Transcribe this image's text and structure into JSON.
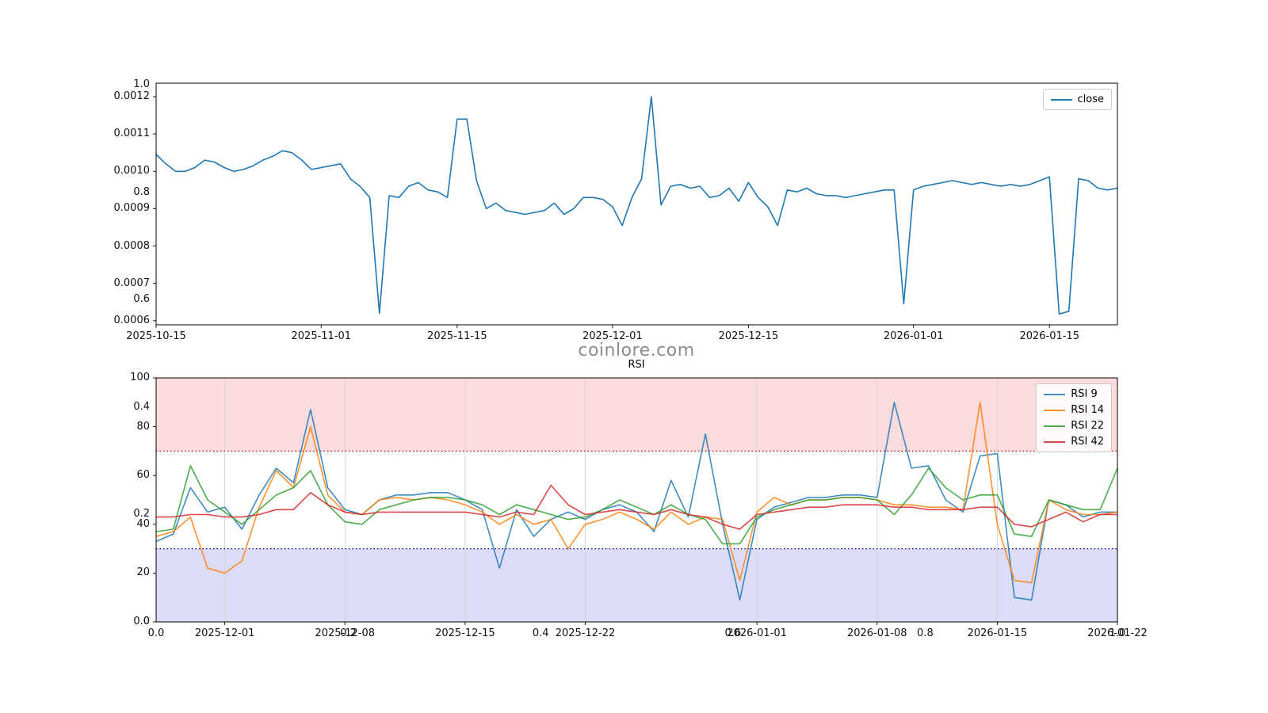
{
  "watermark": "coinlore.com",
  "overlay_axis": {
    "y_tick_labels": [
      "1.0",
      "0.8",
      "0.6",
      "0.4",
      "0.2",
      "0.0"
    ],
    "x_tick_labels": [
      "0.0",
      "0.2",
      "0.4",
      "0.6",
      "0.8",
      "1.0"
    ]
  },
  "chart_data": [
    {
      "type": "line",
      "title": "",
      "legend_position": "upper right",
      "grid": false,
      "xlim_points": 100,
      "ylim": [
        0.000589,
        0.001236
      ],
      "x_tick_indices": [
        0,
        17,
        31,
        47,
        61,
        78,
        92
      ],
      "x_tick_labels": [
        "2025-10-15",
        "2025-11-01",
        "2025-11-15",
        "2025-12-01",
        "2025-12-15",
        "2026-01-01",
        "2026-01-15"
      ],
      "y_tick_values": [
        0.0006,
        0.0007,
        0.0008,
        0.0009,
        0.001,
        0.0011,
        0.0012
      ],
      "y_tick_labels": [
        "0.0006",
        "0.0007",
        "0.0008",
        "0.0009",
        "0.0010",
        "0.0011",
        "0.0012"
      ],
      "series": [
        {
          "name": "close",
          "color": "#1f77b4",
          "values": [
            0.001045,
            0.00102,
            0.001,
            0.001,
            0.00101,
            0.00103,
            0.001025,
            0.00101,
            0.001,
            0.001005,
            0.001015,
            0.00103,
            0.00104,
            0.001055,
            0.00105,
            0.00103,
            0.001005,
            0.00101,
            0.001015,
            0.00102,
            0.00098,
            0.00096,
            0.00093,
            0.00062,
            0.000935,
            0.00093,
            0.00096,
            0.00097,
            0.00095,
            0.000945,
            0.00093,
            0.00114,
            0.00114,
            0.000975,
            0.0009,
            0.000915,
            0.000895,
            0.00089,
            0.000885,
            0.00089,
            0.000895,
            0.000915,
            0.000885,
            0.0009,
            0.00093,
            0.00093,
            0.000925,
            0.000905,
            0.000855,
            0.00093,
            0.00098,
            0.0012,
            0.00091,
            0.00096,
            0.000965,
            0.000955,
            0.00096,
            0.00093,
            0.000935,
            0.000955,
            0.00092,
            0.00097,
            0.00093,
            0.000905,
            0.000855,
            0.00095,
            0.000945,
            0.000955,
            0.00094,
            0.000935,
            0.000935,
            0.00093,
            0.000935,
            0.00094,
            0.000945,
            0.00095,
            0.00095,
            0.000645,
            0.00095,
            0.00096,
            0.000965,
            0.00097,
            0.000975,
            0.00097,
            0.000965,
            0.00097,
            0.000965,
            0.00096,
            0.000965,
            0.00096,
            0.000965,
            0.000975,
            0.000985,
            0.000618,
            0.000625,
            0.00098,
            0.000975,
            0.000955,
            0.00095,
            0.000955
          ]
        }
      ]
    },
    {
      "type": "line",
      "title": "RSI",
      "legend_position": "upper right",
      "grid": true,
      "xlim_points": 57,
      "ylim": [
        0,
        100
      ],
      "x_tick_indices": [
        4,
        11,
        18,
        25,
        35,
        42,
        49,
        56
      ],
      "x_tick_labels": [
        "2025-12-01",
        "2025-12-08",
        "2025-12-15",
        "2025-12-22",
        "2026-01-01",
        "2026-01-08",
        "2026-01-15",
        "2026-01-22"
      ],
      "y_tick_values": [
        0,
        20,
        40,
        60,
        80,
        100
      ],
      "y_tick_labels": [
        "0",
        "20",
        "40",
        "60",
        "80",
        "100"
      ],
      "overbought_line": {
        "value": 70,
        "color": "#cc0000",
        "style": "dotted"
      },
      "oversold_line": {
        "value": 30,
        "color": "#0000bb",
        "style": "dotted"
      },
      "overbought_band_color": "#fbdcdc",
      "oversold_band_color": "#dcdcf6",
      "series": [
        {
          "name": "RSI 9",
          "color": "#1f77b4",
          "values": [
            33,
            36,
            55,
            45,
            47,
            38,
            52,
            63,
            57,
            87,
            55,
            46,
            44,
            50,
            52,
            52,
            53,
            53,
            50,
            46,
            22,
            46,
            35,
            42,
            45,
            42,
            46,
            48,
            45,
            37,
            58,
            43,
            77,
            40,
            9,
            42,
            47,
            49,
            51,
            51,
            52,
            52,
            51,
            90,
            63,
            64,
            50,
            45,
            68,
            69,
            10,
            9,
            50,
            48,
            43,
            45,
            45
          ]
        },
        {
          "name": "RSI 14",
          "color": "#ff7f0e",
          "values": [
            35,
            37,
            43,
            22,
            20,
            25,
            47,
            62,
            55,
            80,
            52,
            45,
            44,
            50,
            51,
            50,
            51,
            50,
            48,
            45,
            40,
            44,
            40,
            42,
            30,
            40,
            42,
            45,
            42,
            38,
            45,
            40,
            43,
            42,
            17,
            45,
            51,
            48,
            50,
            50,
            51,
            51,
            50,
            48,
            48,
            47,
            47,
            46,
            90,
            40,
            17,
            16,
            50,
            46,
            44,
            44,
            45
          ]
        },
        {
          "name": "RSI 22",
          "color": "#2ca02c",
          "values": [
            37,
            38,
            64,
            50,
            45,
            40,
            46,
            52,
            55,
            62,
            48,
            41,
            40,
            46,
            48,
            50,
            51,
            51,
            50,
            48,
            44,
            48,
            46,
            44,
            42,
            43,
            46,
            50,
            47,
            44,
            48,
            44,
            42,
            32,
            32,
            43,
            46,
            48,
            50,
            50,
            51,
            51,
            50,
            44,
            52,
            63,
            55,
            50,
            52,
            52,
            36,
            35,
            50,
            48,
            46,
            46,
            63
          ]
        },
        {
          "name": "RSI 42",
          "color": "#d62728",
          "values": [
            43,
            43,
            44,
            44,
            43,
            43,
            44,
            46,
            46,
            53,
            48,
            45,
            44,
            45,
            45,
            45,
            45,
            45,
            45,
            44,
            43,
            45,
            44,
            56,
            48,
            44,
            45,
            46,
            45,
            44,
            46,
            44,
            43,
            40,
            38,
            44,
            45,
            46,
            47,
            47,
            48,
            48,
            48,
            47,
            47,
            46,
            46,
            46,
            47,
            47,
            40,
            39,
            42,
            45,
            41,
            44,
            44
          ]
        }
      ]
    }
  ]
}
